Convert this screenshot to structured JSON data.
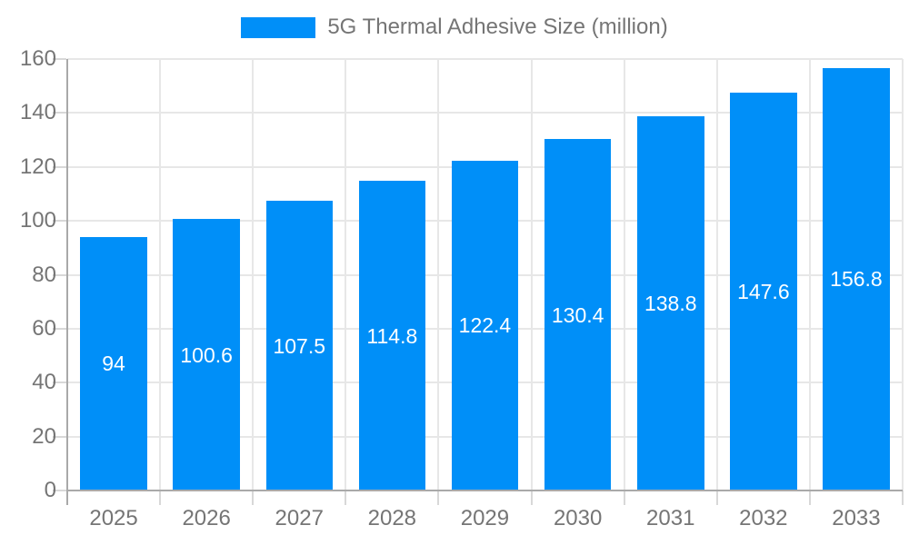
{
  "chart_data": {
    "type": "bar",
    "title": "5G Thermal Adhesive Size (million)",
    "legend": {
      "position": "top",
      "label": "5G Thermal Adhesive Size (million)"
    },
    "categories": [
      "2025",
      "2026",
      "2027",
      "2028",
      "2029",
      "2030",
      "2031",
      "2032",
      "2033"
    ],
    "series": [
      {
        "name": "5G Thermal Adhesive Size (million)",
        "values": [
          94,
          100.6,
          107.5,
          114.8,
          122.4,
          130.4,
          138.8,
          147.6,
          156.8
        ]
      }
    ],
    "data_labels": [
      "94",
      "100.6",
      "107.5",
      "114.8",
      "122.4",
      "130.4",
      "138.8",
      "147.6",
      "156.8"
    ],
    "xlabel": "",
    "ylabel": "",
    "ylim": [
      0,
      160
    ],
    "ytick_step": 20,
    "yticks": [
      0,
      20,
      40,
      60,
      80,
      100,
      120,
      140,
      160
    ],
    "grid": "horizontal lines at each y tick, vertical lines at category boundaries, ticks outside both axes",
    "colors": {
      "bar": "#008ff8",
      "data_label": "#ffffff",
      "axis_text": "#757575",
      "grid_line": "#e7e7e7",
      "tick_line": "#d8d8d8",
      "axis_line": "#a9a9a9",
      "background": "#ffffff"
    }
  }
}
